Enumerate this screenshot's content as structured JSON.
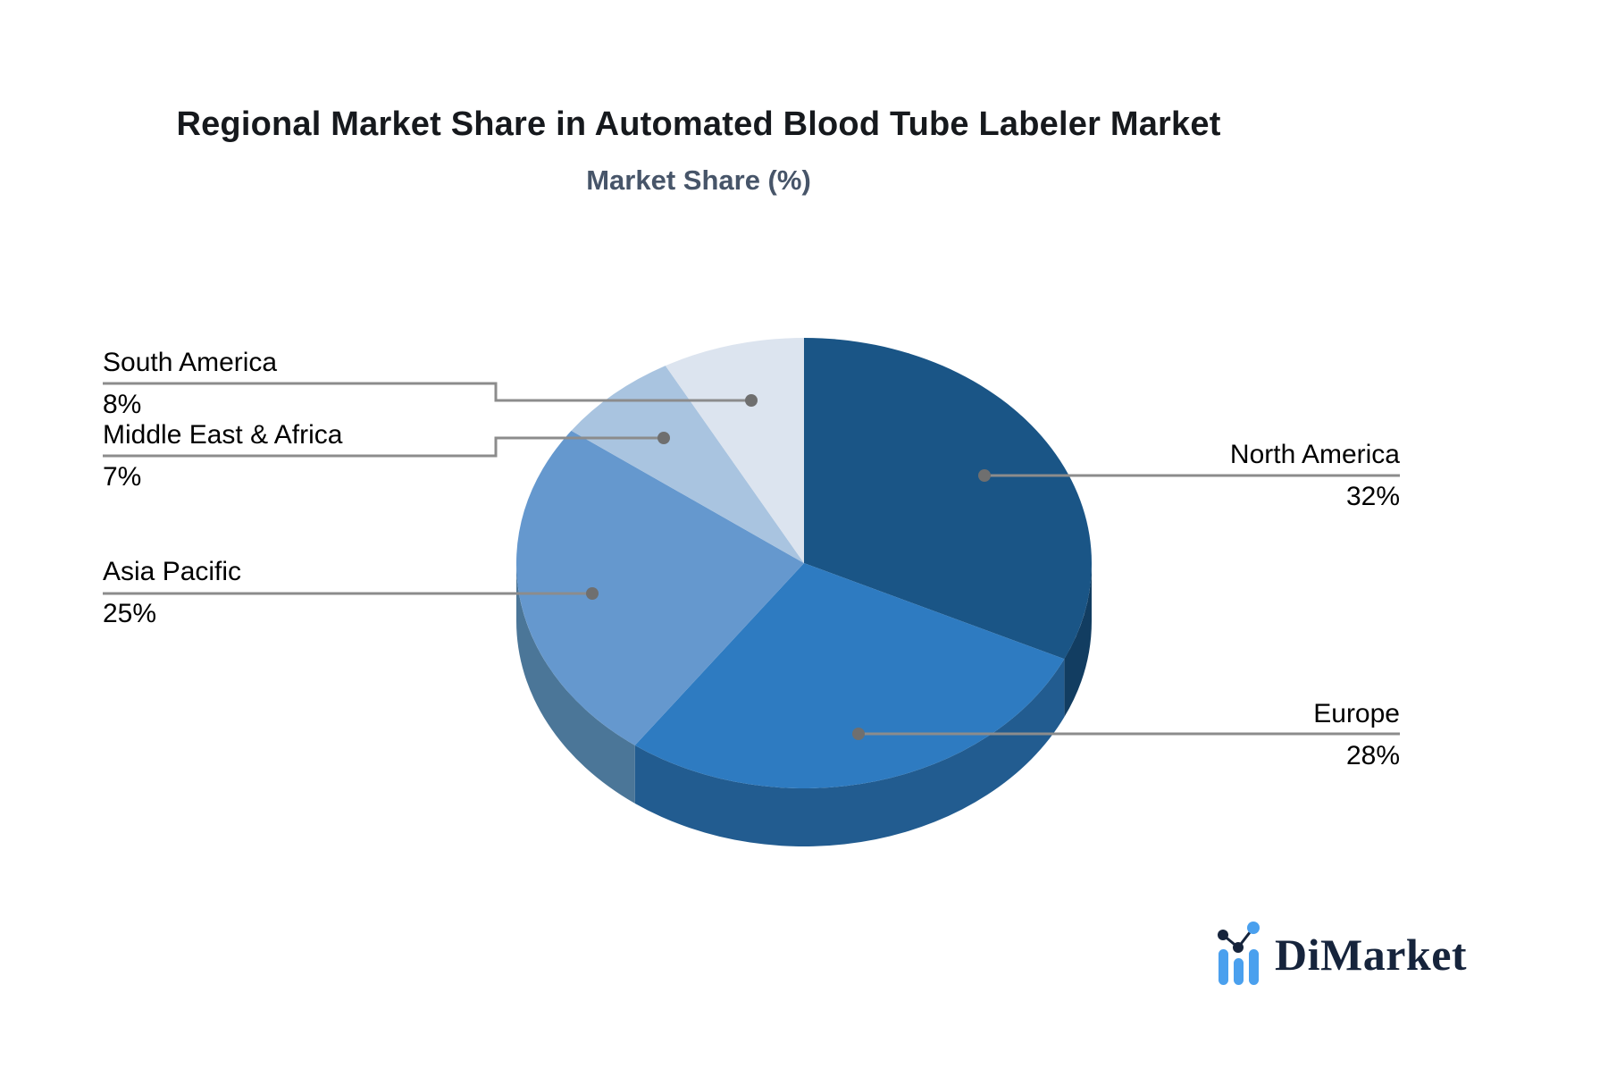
{
  "title": "Regional Market Share in Automated Blood Tube Labeler Market",
  "subtitle": "Market Share (%)",
  "chart_data": {
    "type": "pie",
    "title": "Regional Market Share in Automated Blood Tube Labeler Market",
    "subtitle": "Market Share (%)",
    "unit": "%",
    "effect": "3d",
    "start_angle_deg": 0,
    "direction": "clockwise",
    "legend_position": "callout-labels",
    "slices": [
      {
        "label": "North America",
        "value": 32,
        "display": "32%",
        "color": "#1a5586",
        "side_color": "#123d61"
      },
      {
        "label": "Europe",
        "value": 28,
        "display": "28%",
        "color": "#2e7bc1",
        "side_color": "#225c90"
      },
      {
        "label": "Asia Pacific",
        "value": 25,
        "display": "25%",
        "color": "#6598ce",
        "side_color": "#4b7698"
      },
      {
        "label": "Middle East & Africa",
        "value": 7,
        "display": "7%",
        "color": "#a9c4e0",
        "side_color": "#7e93a8"
      },
      {
        "label": "South America",
        "value": 8,
        "display": "8%",
        "color": "#dce4ef",
        "side_color": "#a5abb4"
      }
    ],
    "callout_line_color": "#8c8c8c",
    "callout_dot_color": "#6f6f6f"
  },
  "logo": {
    "text": "DiMarket",
    "text_color": "#16243c",
    "icon": "bar-chart-with-trend-dots",
    "icon_color": "#4aa0ee"
  }
}
